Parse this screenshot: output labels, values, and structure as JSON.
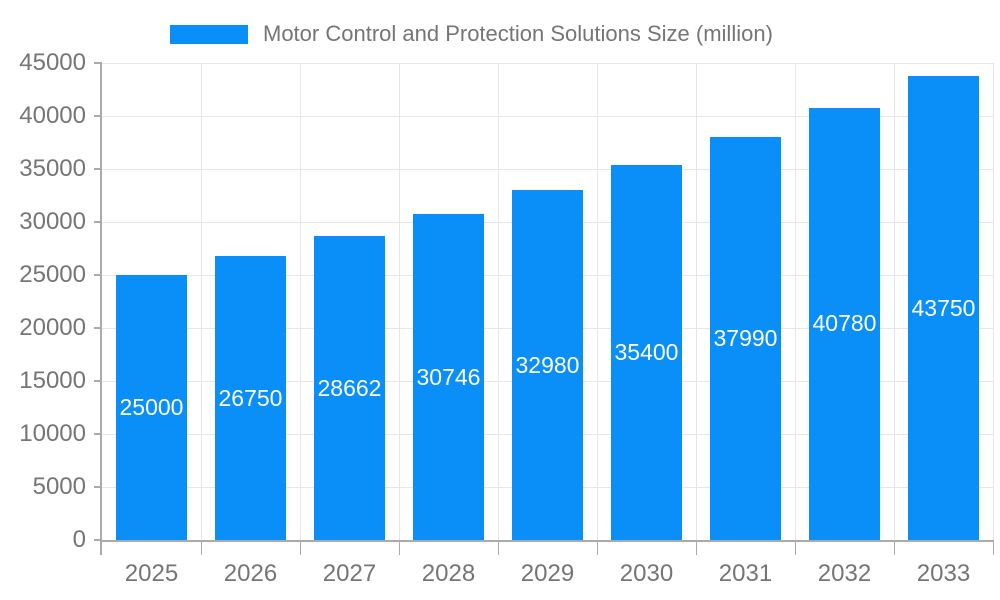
{
  "chart_data": {
    "type": "bar",
    "title": "",
    "legend": "Motor Control and Protection Solutions Size (million)",
    "categories": [
      "2025",
      "2026",
      "2027",
      "2028",
      "2029",
      "2030",
      "2031",
      "2032",
      "2033"
    ],
    "series": [
      {
        "name": "Motor Control and Protection Solutions Size (million)",
        "values": [
          25000,
          26750,
          28662,
          30746,
          32980,
          35400,
          37990,
          40780,
          43750
        ]
      }
    ],
    "xlabel": "",
    "ylabel": "",
    "ylim": [
      0,
      45000
    ],
    "ytick_step": 5000,
    "ytick_labels": [
      "0",
      "5000",
      "10000",
      "15000",
      "20000",
      "25000",
      "30000",
      "35000",
      "40000",
      "45000"
    ],
    "grid": true,
    "legend_position": "top",
    "value_labels": "inside-center",
    "colors": {
      "bar": "#0a8ff8",
      "value_label": "#ffffff",
      "axis_text": "#757575",
      "grid_line": "#e6e6e6",
      "axis_line": "#aaaaaa"
    }
  }
}
